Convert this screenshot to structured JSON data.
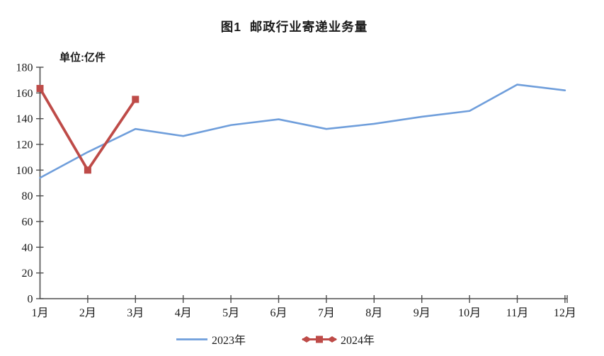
{
  "chart_data": {
    "type": "line",
    "title": "图1  邮政行业寄递业务量",
    "unit_label": "单位:亿件",
    "categories": [
      "1月",
      "2月",
      "3月",
      "4月",
      "5月",
      "6月",
      "7月",
      "8月",
      "9月",
      "10月",
      "11月",
      "12月"
    ],
    "series": [
      {
        "name": "2023年",
        "color": "#6F9EDB",
        "marker": "none",
        "values": [
          94,
          114,
          132,
          126.5,
          135,
          139.5,
          132,
          136,
          141.5,
          146,
          166.5,
          162
        ]
      },
      {
        "name": "2024年",
        "color": "#BE4B48",
        "marker": "square",
        "values": [
          163.5,
          100,
          155
        ]
      }
    ],
    "ylim": [
      0,
      180
    ],
    "y_tick_step": 20,
    "y_ticks": [
      "0",
      "20",
      "40",
      "60",
      "80",
      "100",
      "120",
      "140",
      "160",
      "180"
    ],
    "grid": false,
    "legend_position": "bottom",
    "axis_color": "#4d4d4d",
    "text_color": "#1a1a1a"
  }
}
